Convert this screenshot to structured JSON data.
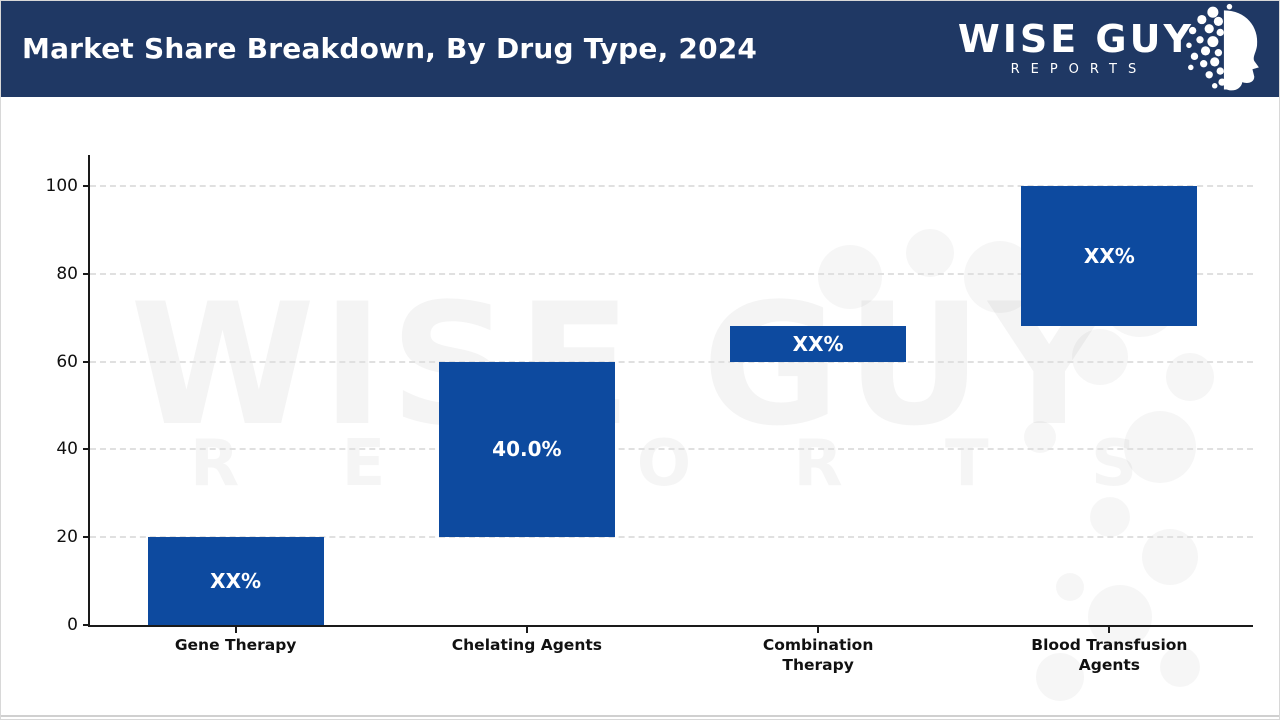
{
  "header": {
    "title": "Market Share Breakdown, By Drug Type, 2024",
    "bg_color": "#1f3864",
    "logo": {
      "line1": "WISE GUY",
      "line2": "REPORTS"
    }
  },
  "watermark": {
    "line1": "WISE GUY",
    "line2": "R E P O R T S"
  },
  "chart_data": {
    "type": "bar",
    "subtype": "waterfall",
    "title": "Market Share Breakdown, By Drug Type, 2024",
    "categories": [
      "Gene Therapy",
      "Chelating Agents",
      "Combination\nTherapy",
      "Blood Transfusion\nAgents"
    ],
    "segments": [
      {
        "start": 0,
        "end": 20,
        "label": "XX%"
      },
      {
        "start": 20,
        "end": 60,
        "label": "40.0%"
      },
      {
        "start": 60,
        "end": 68,
        "label": "XX%"
      },
      {
        "start": 68,
        "end": 100,
        "label": "XX%"
      }
    ],
    "yticks": [
      0,
      20,
      40,
      60,
      80,
      100
    ],
    "ylim": [
      0,
      107.5
    ],
    "xlabel": "",
    "ylabel": "",
    "grid": "dashed-horizontal",
    "legend": "none",
    "bar_color": "#0d4a9f",
    "bar_label_color": "#ffffff",
    "axis_color": "#1a1a1a"
  }
}
